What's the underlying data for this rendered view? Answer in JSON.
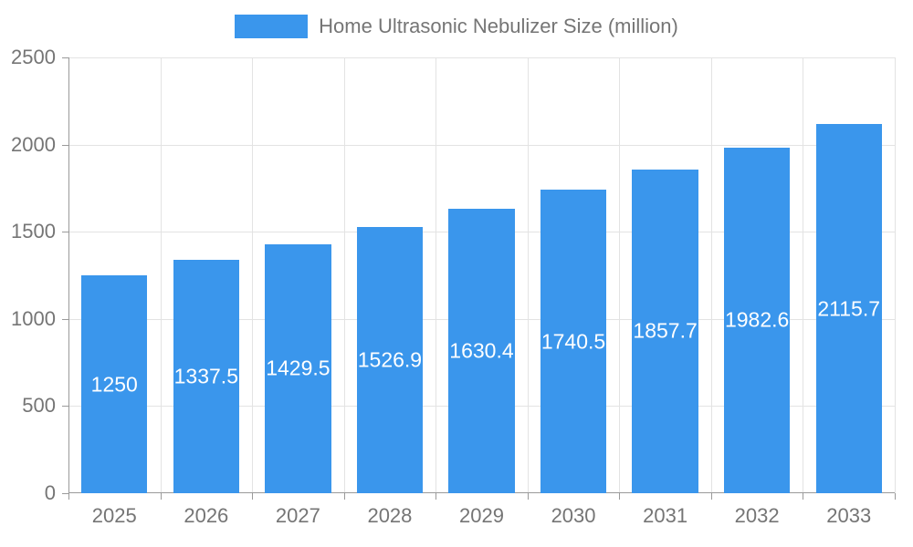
{
  "chart_data": {
    "type": "bar",
    "title": "Home Ultrasonic Nebulizer Size (million)",
    "categories": [
      "2025",
      "2026",
      "2027",
      "2028",
      "2029",
      "2030",
      "2031",
      "2032",
      "2033"
    ],
    "values": [
      1250,
      1337.5,
      1429.5,
      1526.9,
      1630.4,
      1740.5,
      1857.7,
      1982.6,
      2115.7
    ],
    "value_labels": [
      "1250",
      "1337.5",
      "1429.5",
      "1526.9",
      "1630.4",
      "1740.5",
      "1857.7",
      "1982.6",
      "2115.7"
    ],
    "ylim": [
      0,
      2500
    ],
    "yticks": [
      0,
      500,
      1000,
      1500,
      2000,
      2500
    ],
    "ytick_labels": [
      "0",
      "500",
      "1000",
      "1500",
      "2000",
      "2500"
    ],
    "grid": true,
    "legend_position": "top",
    "colors": {
      "bar": "#3a96ec",
      "axis_text": "#757575",
      "gridline": "#e3e3e3",
      "bar_label_text": "#ffffff"
    }
  }
}
